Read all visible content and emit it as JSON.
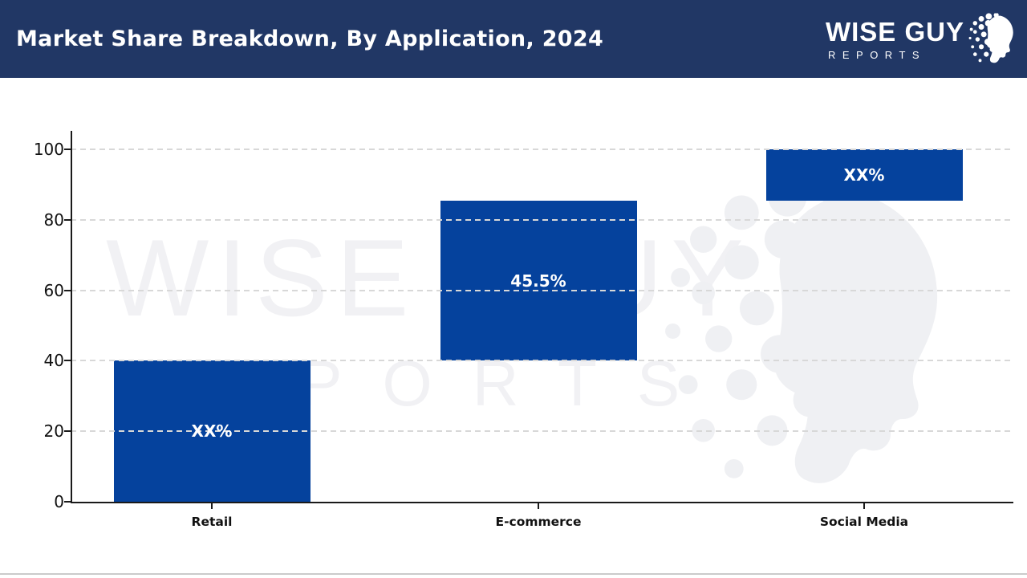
{
  "header": {
    "title": "Market Share Breakdown, By Application, 2024",
    "logo": {
      "wordmark": "WISE GUY",
      "subtext": "REPORTS"
    }
  },
  "watermark": {
    "line1": "WISE GUY",
    "line2": "REPORTS"
  },
  "chart_data": {
    "type": "bar",
    "variant": "waterfall",
    "title": "Market Share Breakdown, By Application, 2024",
    "categories": [
      "Retail",
      "E-commerce",
      "Social Media"
    ],
    "segments": [
      {
        "category": "Retail",
        "start": 0,
        "end": 40,
        "value": 40,
        "label": "XX%"
      },
      {
        "category": "E-commerce",
        "start": 40,
        "end": 85.5,
        "value": 45.5,
        "label": "45.5%"
      },
      {
        "category": "Social Media",
        "start": 85.5,
        "end": 100,
        "value": 14.5,
        "label": "XX%"
      }
    ],
    "bar_labels": [
      "XX%",
      "45.5%",
      "XX%"
    ],
    "xlabel": "",
    "ylabel": "",
    "y_ticks": [
      0,
      20,
      40,
      60,
      80,
      100
    ],
    "ylim": [
      0,
      105
    ],
    "grid": {
      "horizontal": true,
      "style": "dashed",
      "color": "#d8d8d8",
      "above_bars": true
    },
    "legend": null,
    "colors": {
      "bar": "#05429d",
      "header_bg": "#213765",
      "bar_label_text": "#ffffff",
      "axis": "#1a1a1a",
      "tick_label": "#111111",
      "watermark": "#f1f1f4"
    }
  }
}
